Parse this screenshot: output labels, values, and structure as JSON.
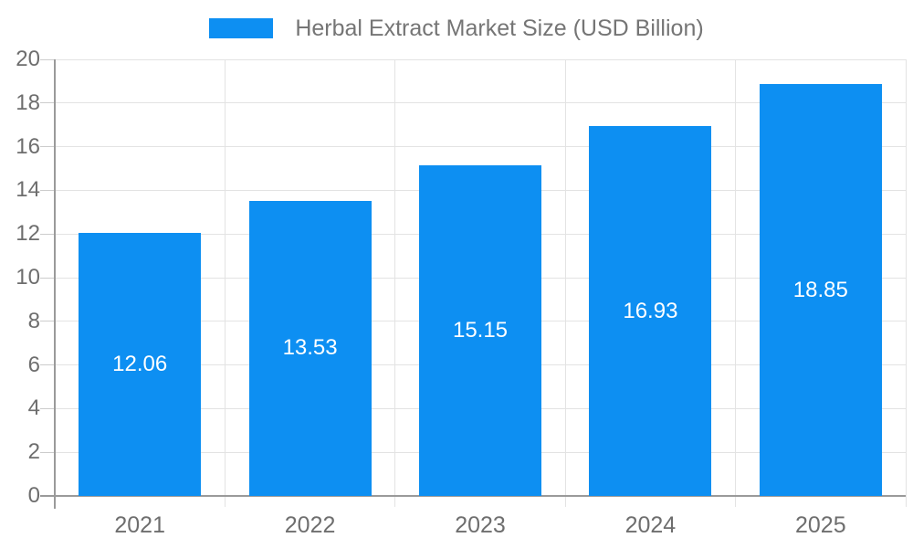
{
  "legend": {
    "position": "top",
    "items": [
      {
        "label": "Herbal Extract Market Size (USD Billion)",
        "color": "#0d8ff2"
      }
    ]
  },
  "chart_data": {
    "type": "bar",
    "title": "Herbal Extract Market Size (USD Billion)",
    "categories": [
      "2021",
      "2022",
      "2023",
      "2024",
      "2025"
    ],
    "values": [
      12.06,
      13.53,
      15.15,
      16.93,
      18.85
    ],
    "value_labels": [
      "12.06",
      "13.53",
      "15.15",
      "16.93",
      "18.85"
    ],
    "xlabel": "",
    "ylabel": "",
    "ylim": [
      0,
      20
    ],
    "yticks": [
      0,
      2,
      4,
      6,
      8,
      10,
      12,
      14,
      16,
      18,
      20
    ],
    "grid": true,
    "legend_position": "top",
    "colors": {
      "bar": "#0d8ff2",
      "value_label_text": "#ffffff",
      "axis_text": "#6e6e6e",
      "legend_text": "#757575",
      "gridline": "#e3e3e3",
      "axis_line": "#9a9a9a",
      "tick": "#cccccc",
      "background": "#ffffff"
    }
  }
}
